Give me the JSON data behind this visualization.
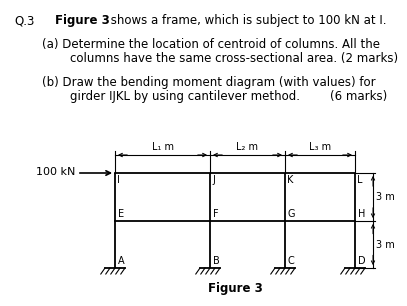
{
  "q_label": "Q.3",
  "bold_part": "Figure 3",
  "text_line1": " shows a frame, which is subject to 100 kN at I.",
  "text_a1": "(a) Determine the location of centroid of columns. All the",
  "text_a2": "    columns have the same cross-sectional area. (2 marks)",
  "text_b1": "(b) Draw the bending moment diagram (with values) for",
  "text_b2": "    girder IJKL by using cantilever method.        (6 marks)",
  "fig_label": "Figure 3",
  "load_label": "100 kN",
  "dim_labels": [
    "L₁ m",
    "L₂ m",
    "L₃ m"
  ],
  "node_labels_top": [
    "I",
    "J",
    "K",
    "L"
  ],
  "node_labels_mid": [
    "E",
    "F",
    "G",
    "H"
  ],
  "node_labels_bot": [
    "A",
    "B",
    "C",
    "D"
  ],
  "dim_right": [
    "3 m",
    "3 m"
  ],
  "bg_color": "#ffffff",
  "frame_color": "#000000",
  "text_color": "#000000",
  "font_size_text": 8.5,
  "font_size_node": 7,
  "font_size_fig": 8,
  "font_size_dim": 7
}
